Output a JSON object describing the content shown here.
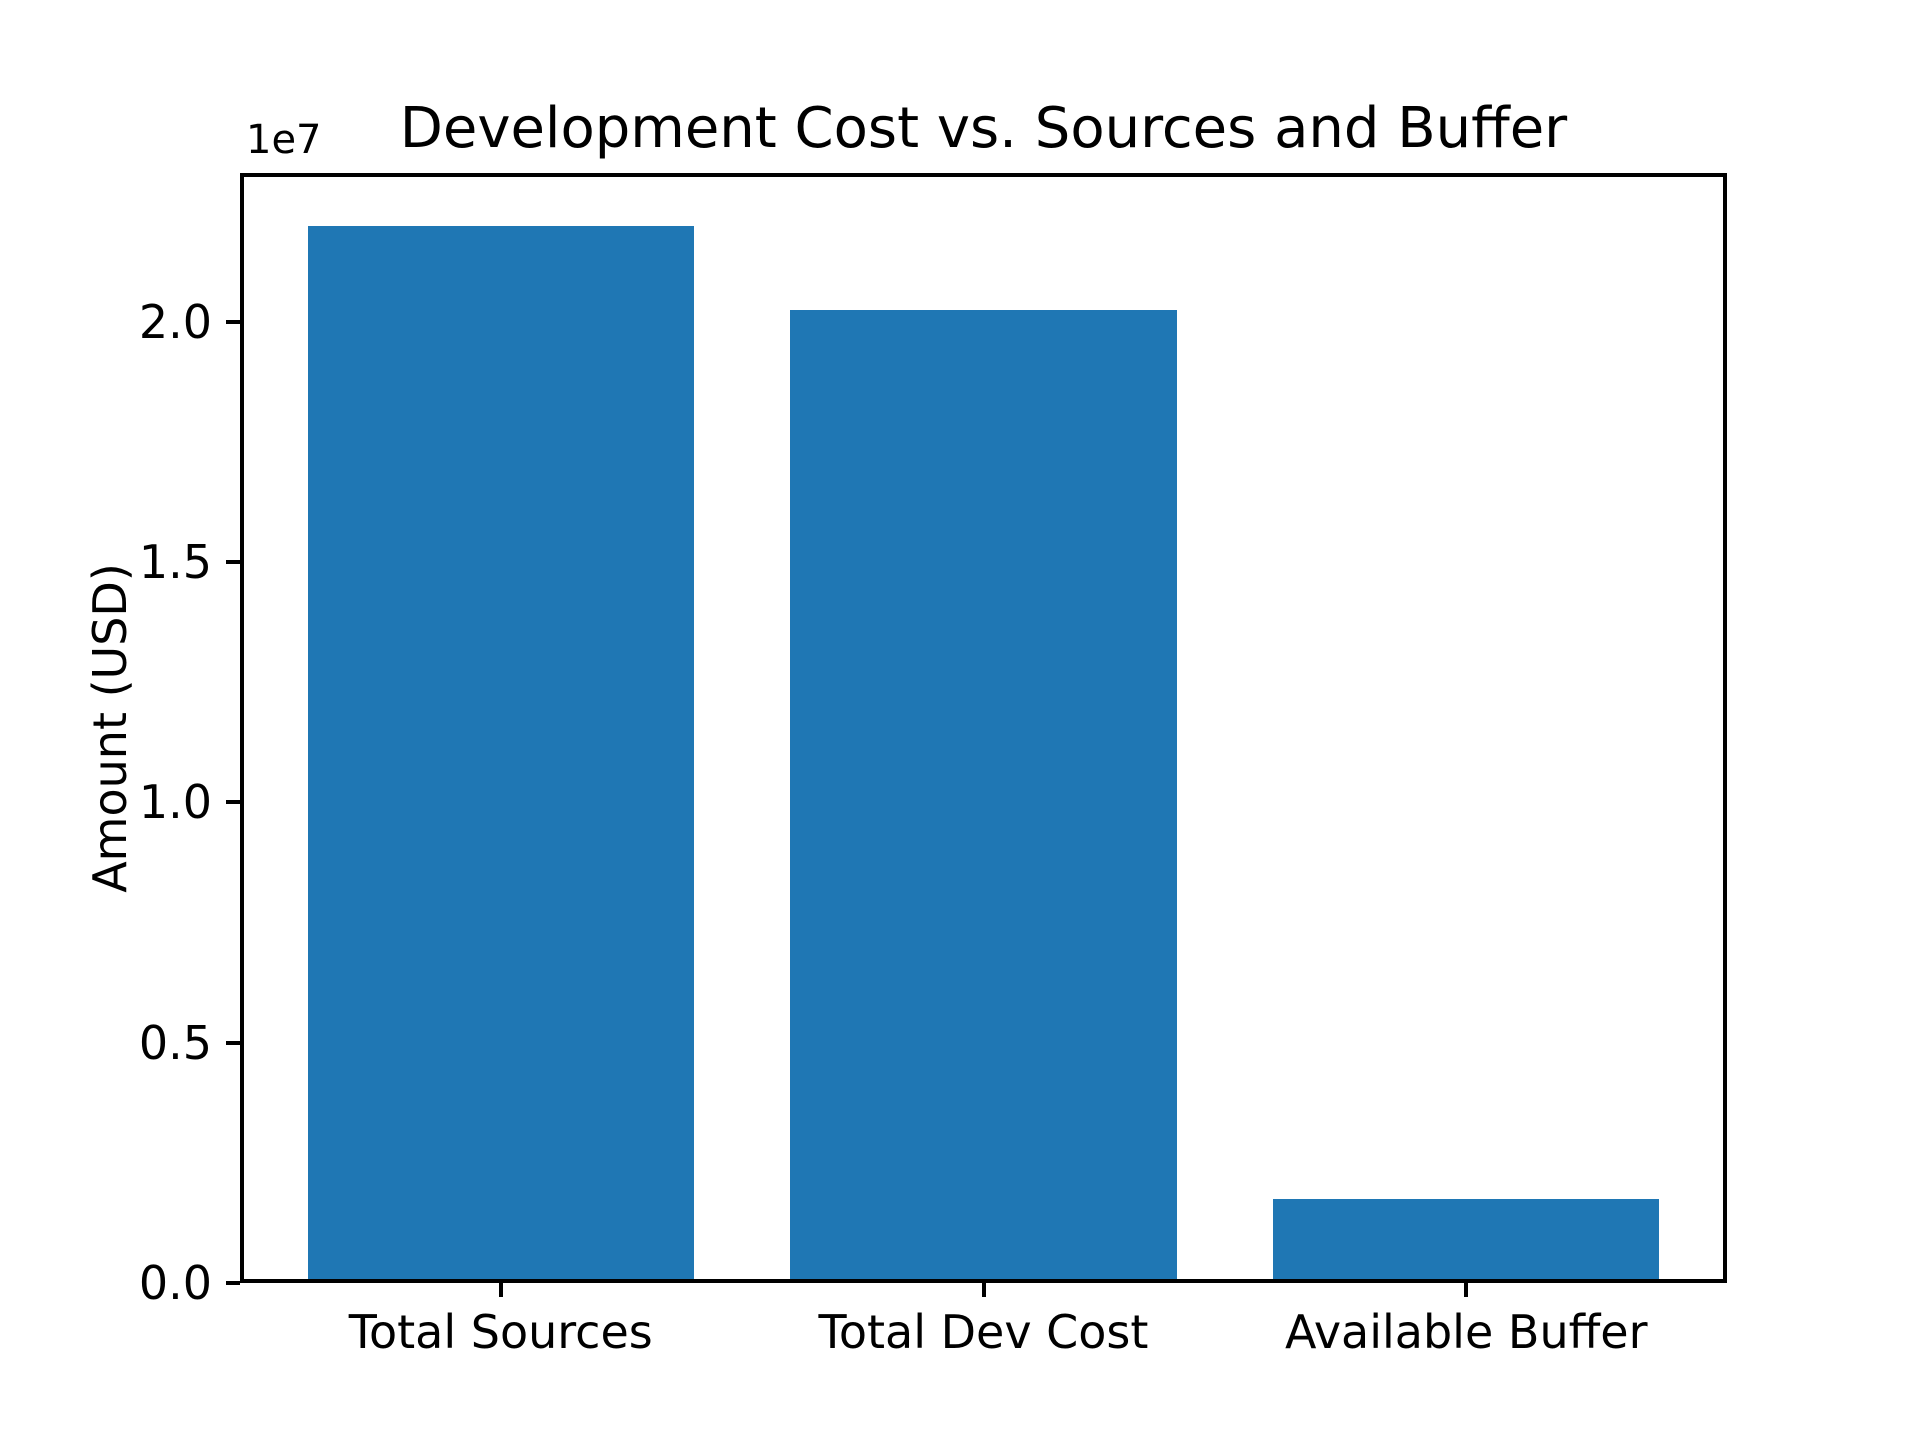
{
  "chart_data": {
    "type": "bar",
    "title": "Development Cost vs. Sources and Buffer",
    "xlabel": "",
    "ylabel": "Amount (USD)",
    "offset_text": "1e7",
    "categories": [
      "Total Sources",
      "Total Dev Cost",
      "Available Buffer"
    ],
    "values": [
      22000000,
      20250000,
      1750000
    ],
    "yticks": [
      0,
      5000000,
      10000000,
      15000000,
      20000000
    ],
    "ytick_labels": [
      "0.0",
      "0.5",
      "1.0",
      "1.5",
      "2.0"
    ],
    "ylim": [
      0,
      23100000
    ],
    "bar_color": "#1f77b4",
    "axis_color": "#000000",
    "background_color": "#ffffff",
    "grid": false,
    "legend": null,
    "bar_width_fraction": 0.8,
    "x_margin_units": 0.54
  }
}
